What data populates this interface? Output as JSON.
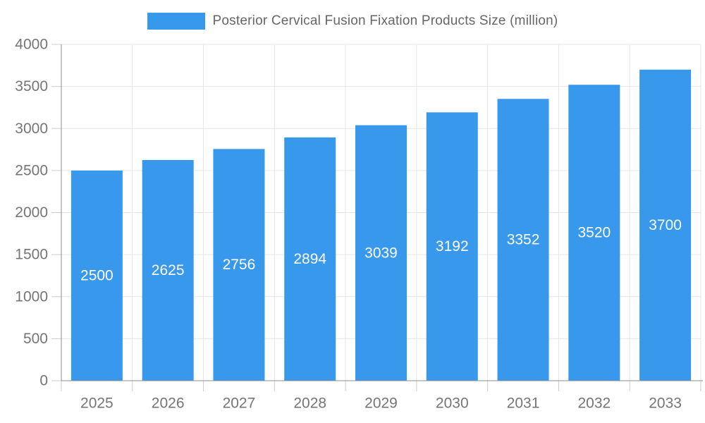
{
  "legend": {
    "label": "Posterior Cervical Fusion Fixation Products Size (million)"
  },
  "colors": {
    "bar": "#3899EC",
    "grid": "#E6E6E6",
    "tick": "#CCCCCC",
    "axis": "#8C8C8C",
    "axis_label": "#757575",
    "value_label": "#FFFFFF",
    "legend_text": "#666666"
  },
  "chart_data": {
    "type": "bar",
    "title": "Posterior Cervical Fusion Fixation Products Size (million)",
    "categories": [
      "2025",
      "2026",
      "2027",
      "2028",
      "2029",
      "2030",
      "2031",
      "2032",
      "2033"
    ],
    "values": [
      2500,
      2625,
      2756,
      2894,
      3039,
      3192,
      3352,
      3520,
      3700
    ],
    "xlabel": "",
    "ylabel": "",
    "ylim": [
      0,
      4000
    ],
    "ytick_step": 500,
    "grid": true,
    "legend_position": "top",
    "value_labels": "inside-center"
  }
}
